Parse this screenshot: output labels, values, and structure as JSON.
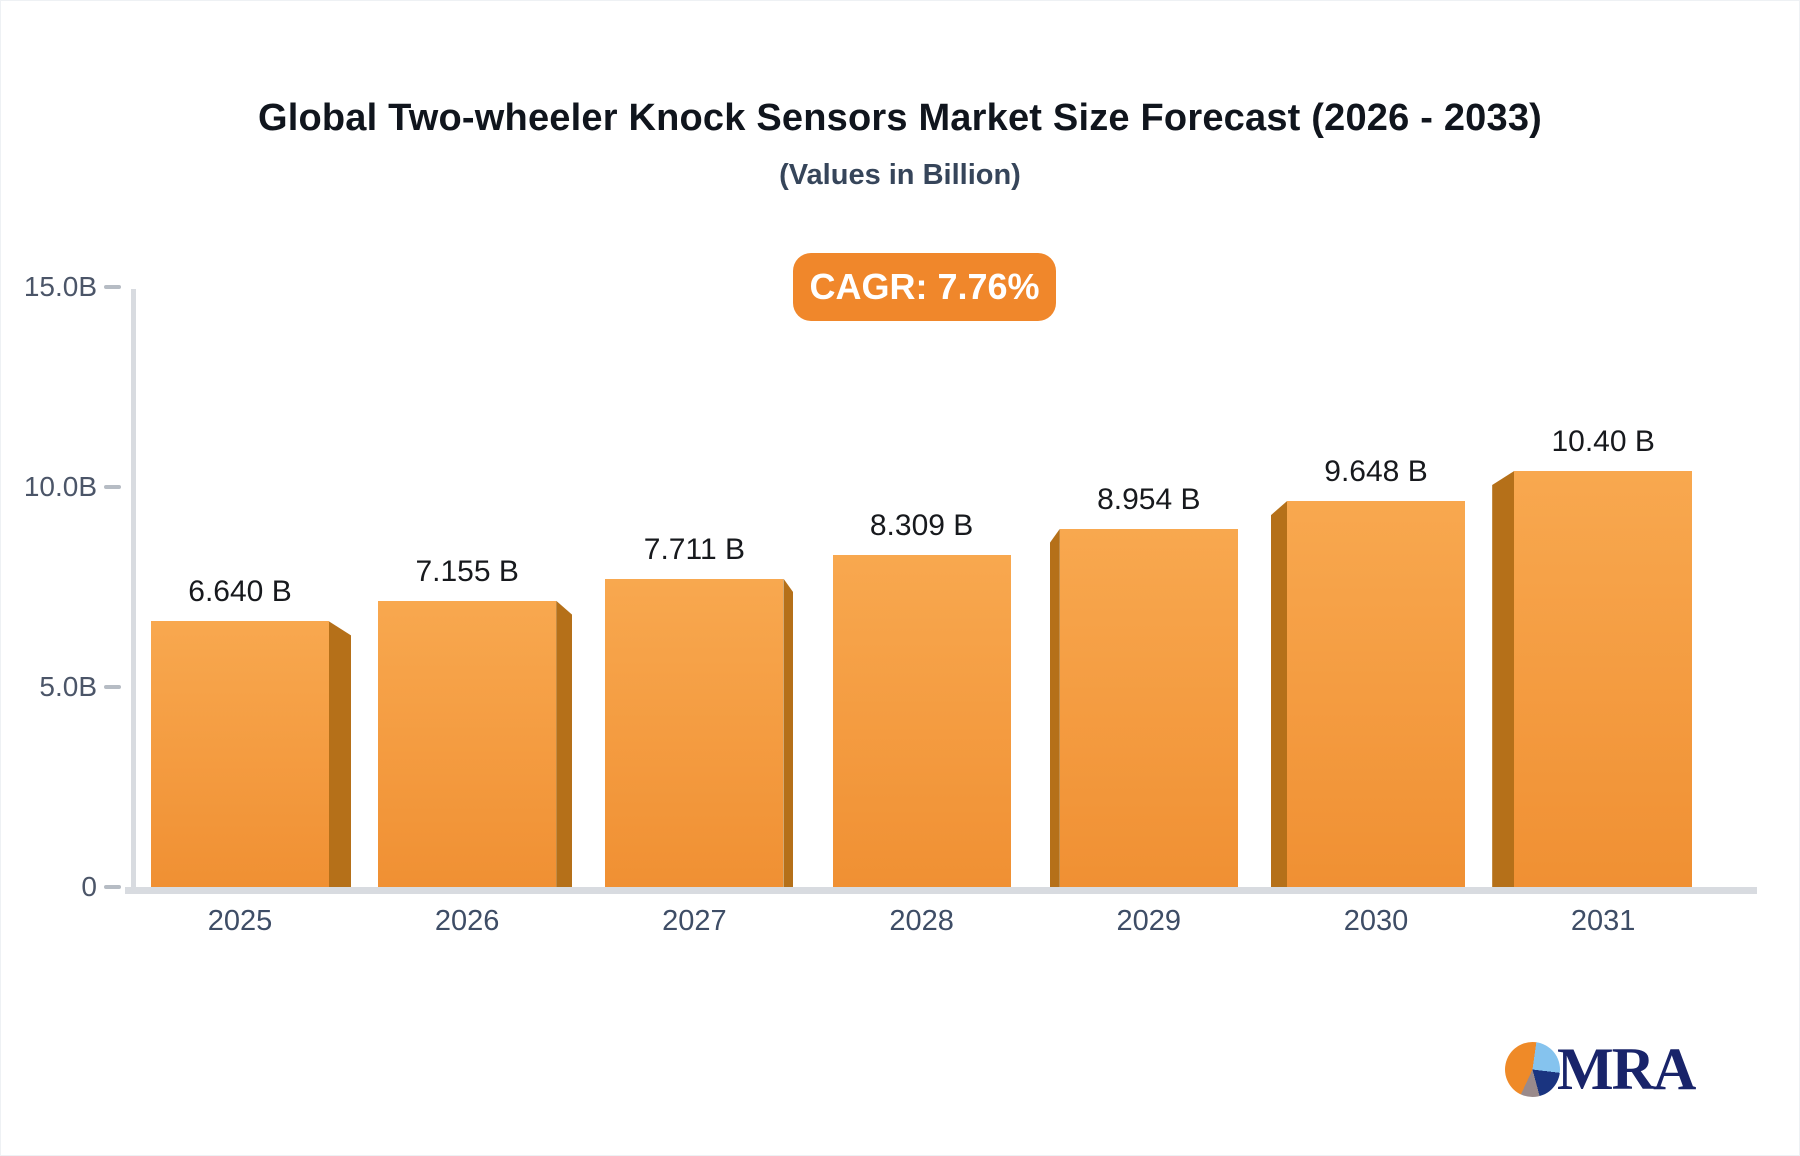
{
  "header": {
    "title": "Global Two-wheeler Knock Sensors Market Size Forecast (2026 - 2033)",
    "subtitle": "(Values in Billion)",
    "cagr_label": "CAGR: 7.76%"
  },
  "colors": {
    "badge": "#f0872b",
    "bar_gradient_top": "#f8a84f",
    "bar_gradient_bottom": "#f09033",
    "bar_side": "#b57019",
    "axis_line": "#d8dbe0",
    "tick": "#b6bcc4",
    "axis_label": "#4b5568",
    "value_label": "#17191d",
    "pie_orange": "#ef8a28",
    "pie_blue": "#85c3ee",
    "pie_navy": "#1a3480",
    "pie_gray": "#9a8a8b",
    "brand_navy": "#19246a"
  },
  "chart_data": {
    "type": "bar",
    "title": "Global Two-wheeler Knock Sensors Market Size Forecast (2026 - 2033)",
    "subtitle": "(Values in Billion)",
    "categories": [
      "2025",
      "2026",
      "2027",
      "2028",
      "2029",
      "2030",
      "2031"
    ],
    "values": [
      6.64,
      7.155,
      7.711,
      8.309,
      8.954,
      9.648,
      10.4
    ],
    "value_labels": [
      "6.640 B",
      "7.155 B",
      "7.711 B",
      "8.309 B",
      "8.954 B",
      "9.648 B",
      "10.40 B"
    ],
    "xlabel": "",
    "ylabel": "",
    "ylim": [
      0,
      15
    ],
    "yticks": [
      {
        "label": "0",
        "value": 0
      },
      {
        "label": "5.0B",
        "value": 5
      },
      {
        "label": "10.0B",
        "value": 10
      },
      {
        "label": "15.0B",
        "value": 15
      }
    ],
    "grid": false,
    "legend": false,
    "annotation": "CAGR: 7.76%"
  },
  "logo": {
    "brand": "MRA"
  }
}
